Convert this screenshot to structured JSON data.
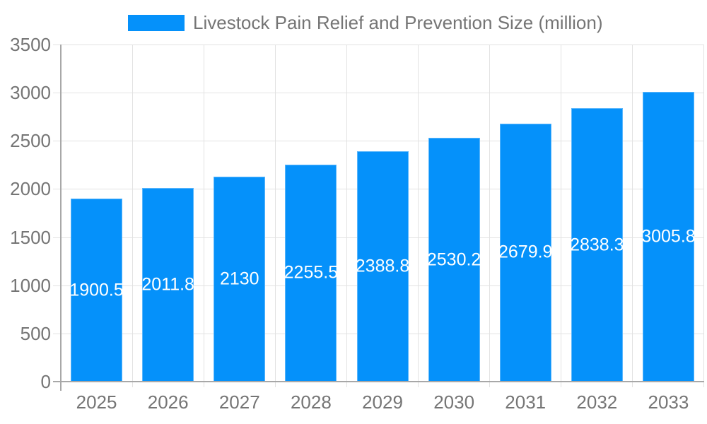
{
  "legend": {
    "label": "Livestock Pain Relief and Prevention Size (million)"
  },
  "colors": {
    "bar": "#0591fa",
    "grid": "#e2e2e2",
    "axis": "#a8a8a8",
    "tick_text": "#757575",
    "bar_label": "#ffffff",
    "background": "#ffffff"
  },
  "chart_data": {
    "type": "bar",
    "title": "Livestock Pain Relief and Prevention Size (million)",
    "categories": [
      "2025",
      "2026",
      "2027",
      "2028",
      "2029",
      "2030",
      "2031",
      "2032",
      "2033"
    ],
    "values": [
      1900.5,
      2011.8,
      2130,
      2255.5,
      2388.8,
      2530.2,
      2679.9,
      2838.3,
      3005.8
    ],
    "xlabel": "",
    "ylabel": "",
    "ylim": [
      0,
      3500
    ],
    "ytick_step": 500,
    "ytick_labels": [
      "0",
      "500",
      "1000",
      "1500",
      "2000",
      "2500",
      "3000",
      "3500"
    ],
    "grid": true,
    "legend_position": "top",
    "bar_labels_inside": true
  }
}
